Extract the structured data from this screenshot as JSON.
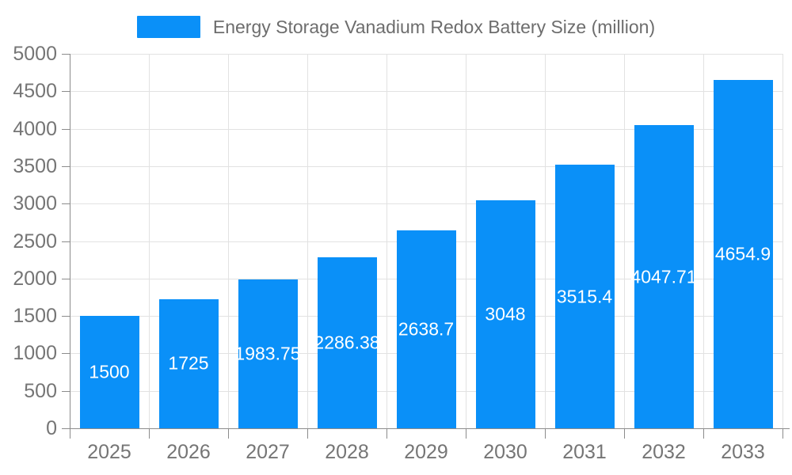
{
  "legend": {
    "label": "Energy Storage Vanadium Redox Battery Size (million)"
  },
  "chart_data": {
    "type": "bar",
    "title": "Energy Storage Vanadium Redox Battery Size (million)",
    "categories": [
      "2025",
      "2026",
      "2027",
      "2028",
      "2029",
      "2030",
      "2031",
      "2032",
      "2033"
    ],
    "series": [
      {
        "name": "Energy Storage Vanadium Redox Battery Size (million)",
        "values": [
          1500,
          1725,
          1983.75,
          2286.38,
          2638.7,
          3048,
          3515.4,
          4047.71,
          4654.9
        ]
      }
    ],
    "bar_value_labels": [
      "1500",
      "1725",
      "1983.75",
      "2286.38",
      "2638.7",
      "3048",
      "3515.4",
      "4047.71",
      "4654.9"
    ],
    "xlabel": "",
    "ylabel": "",
    "ylim": [
      0,
      5000
    ],
    "y_ticks": [
      0,
      500,
      1000,
      1500,
      2000,
      2500,
      3000,
      3500,
      4000,
      4500,
      5000
    ],
    "y_tick_labels": [
      "0",
      "500",
      "1000",
      "1500",
      "2000",
      "2500",
      "3000",
      "3500",
      "4000",
      "4500",
      "5000"
    ],
    "grid": true,
    "legend_position": "top-center",
    "value_label_position": "inside-center",
    "colors": {
      "bar": "#0a90f8",
      "axis_line": "#8c8c8c",
      "grid_line": "#e2e2e2",
      "axis_text": "#757575",
      "legend_text": "#6d6d6d",
      "bar_label_text": "#ffffff",
      "background": "#ffffff"
    }
  }
}
